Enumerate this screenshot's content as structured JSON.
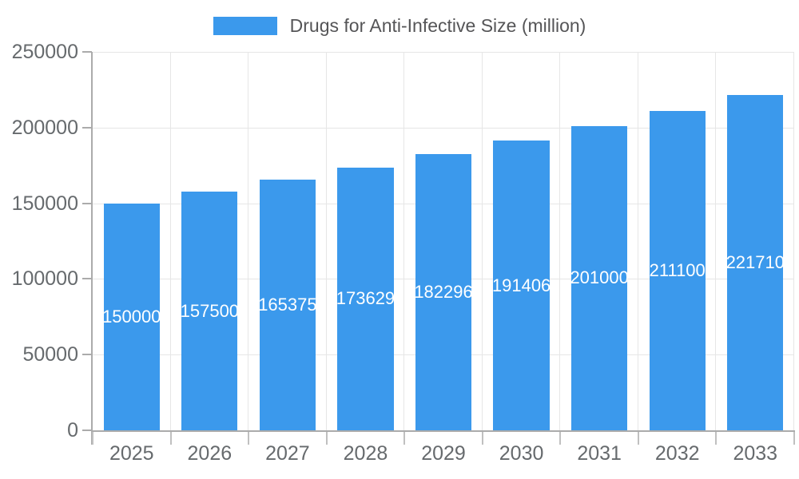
{
  "chart_data": {
    "type": "bar",
    "title": "Drugs for Anti-Infective Size (million)",
    "legend_position": "top",
    "legend": [
      {
        "label": "Drugs for Anti-Infective Size (million)",
        "color": "#3b99ec"
      }
    ],
    "categories": [
      "2025",
      "2026",
      "2027",
      "2028",
      "2029",
      "2030",
      "2031",
      "2032",
      "2033"
    ],
    "series": [
      {
        "name": "Drugs for Anti-Infective Size (million)",
        "values": [
          150000,
          157500,
          165375,
          173629,
          182296,
          191406,
          201000,
          211100,
          221710
        ]
      }
    ],
    "value_labels": [
      "150000",
      "157500",
      "165375",
      "173629",
      "182296",
      "191406",
      "201000",
      "211100",
      "221710"
    ],
    "xlabel": "",
    "ylabel": "",
    "ylim": [
      0,
      250000
    ],
    "ytick_step": 50000,
    "ytick_labels": [
      "0",
      "50000",
      "100000",
      "150000",
      "200000",
      "250000"
    ],
    "grid": true,
    "colors": {
      "bar": "#3b99ec",
      "value_label_text": "#ffffff",
      "grid_line": "#e6e6e6",
      "axis_line": "#ababab",
      "tick_text": "#666a6d",
      "legend_text": "#555557"
    }
  }
}
